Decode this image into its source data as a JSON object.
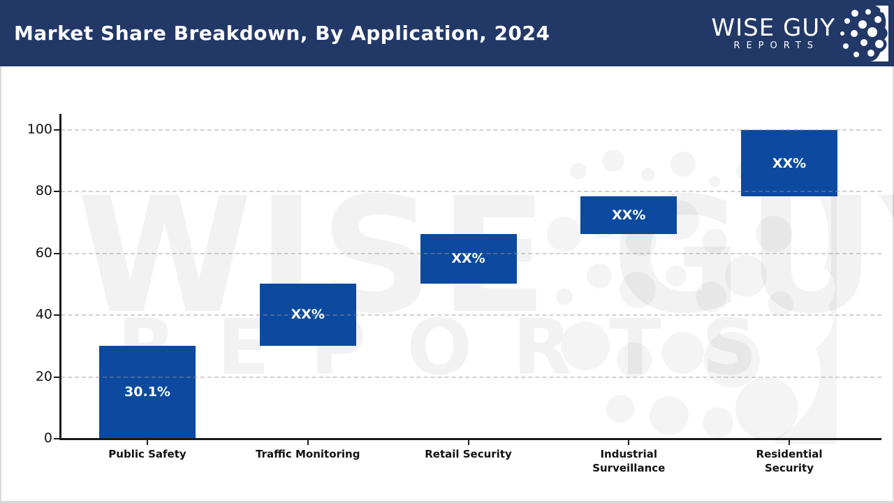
{
  "header": {
    "title": "Market Share Breakdown, By Application, 2024",
    "logo": {
      "line1": "WISE GUY",
      "line2": "REPORTS"
    }
  },
  "watermark": {
    "line1": "WISE GUY",
    "line2": "REPORTS"
  },
  "colors": {
    "header_bg": "#223867",
    "bar": "#0b4a9f",
    "axis": "#1a1a1a",
    "frame_border": "#d9d9d9",
    "title_text": "#ffffff",
    "bar_label_text": "#ffffff",
    "tick_text": "#111111"
  },
  "chart_data": {
    "type": "bar",
    "subtype": "waterfall",
    "title": "Market Share Breakdown, By Application, 2024",
    "categories": [
      "Public Safety",
      "Traffic Monitoring",
      "Retail Security",
      "Industrial\nSurveillance",
      "Residential\nSecurity"
    ],
    "bars": [
      {
        "category": "Public Safety",
        "start": 0,
        "end": 30.1,
        "label": "30.1%"
      },
      {
        "category": "Traffic Monitoring",
        "start": 30.1,
        "end": 50.3,
        "label": "XX%"
      },
      {
        "category": "Retail Security",
        "start": 50.3,
        "end": 66.4,
        "label": "XX%"
      },
      {
        "category": "Industrial Surveillance",
        "start": 66.4,
        "end": 78.4,
        "label": "XX%"
      },
      {
        "category": "Residential Security",
        "start": 78.4,
        "end": 100,
        "label": "XX%"
      }
    ],
    "xlabel": "",
    "ylabel": "",
    "yticks": [
      0,
      20,
      40,
      60,
      80,
      100
    ],
    "ylim": [
      0,
      105
    ],
    "grid": "horizontal-dashed",
    "legend": "none",
    "bar_color": "#0b4a9f"
  }
}
